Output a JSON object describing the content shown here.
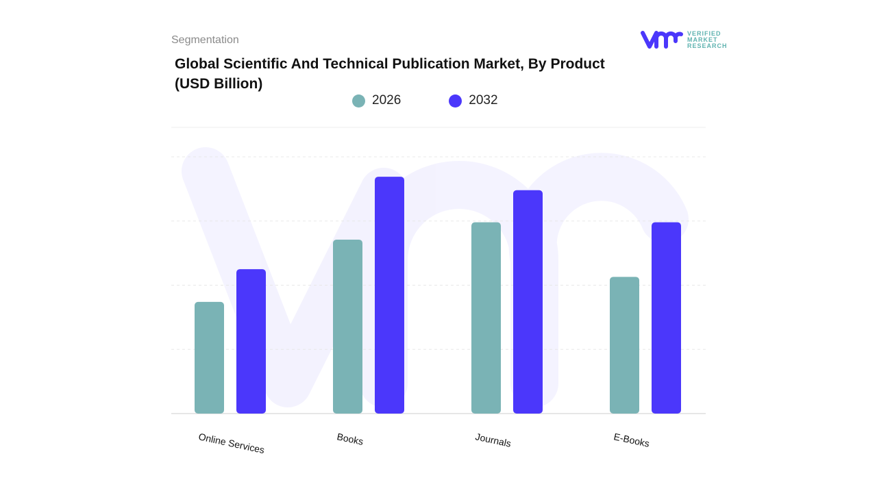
{
  "header": {
    "segment_label": "Segmentation",
    "title": "Global Scientific And Technical Publication Market, By Product (USD Billion)"
  },
  "logo": {
    "text_lines": [
      "VERIFIED",
      "MARKET",
      "RESEARCH"
    ]
  },
  "chart_data": {
    "type": "bar",
    "title": "Global Scientific And Technical Publication Market, By Product (USD Billion)",
    "xlabel": "",
    "ylabel": "",
    "categories": [
      "Online Services",
      "Books",
      "Journals",
      "E-Books"
    ],
    "series": [
      {
        "name": "2026",
        "color": "#7ab3b5",
        "values": [
          1.74,
          2.71,
          2.98,
          2.13
        ]
      },
      {
        "name": "2032",
        "color": "#4b37fb",
        "values": [
          2.25,
          3.69,
          3.48,
          2.98
        ]
      }
    ],
    "ylim": [
      0,
      4
    ],
    "y_tick_labels_shown": false,
    "grid": true,
    "legend_position": "top-center"
  }
}
